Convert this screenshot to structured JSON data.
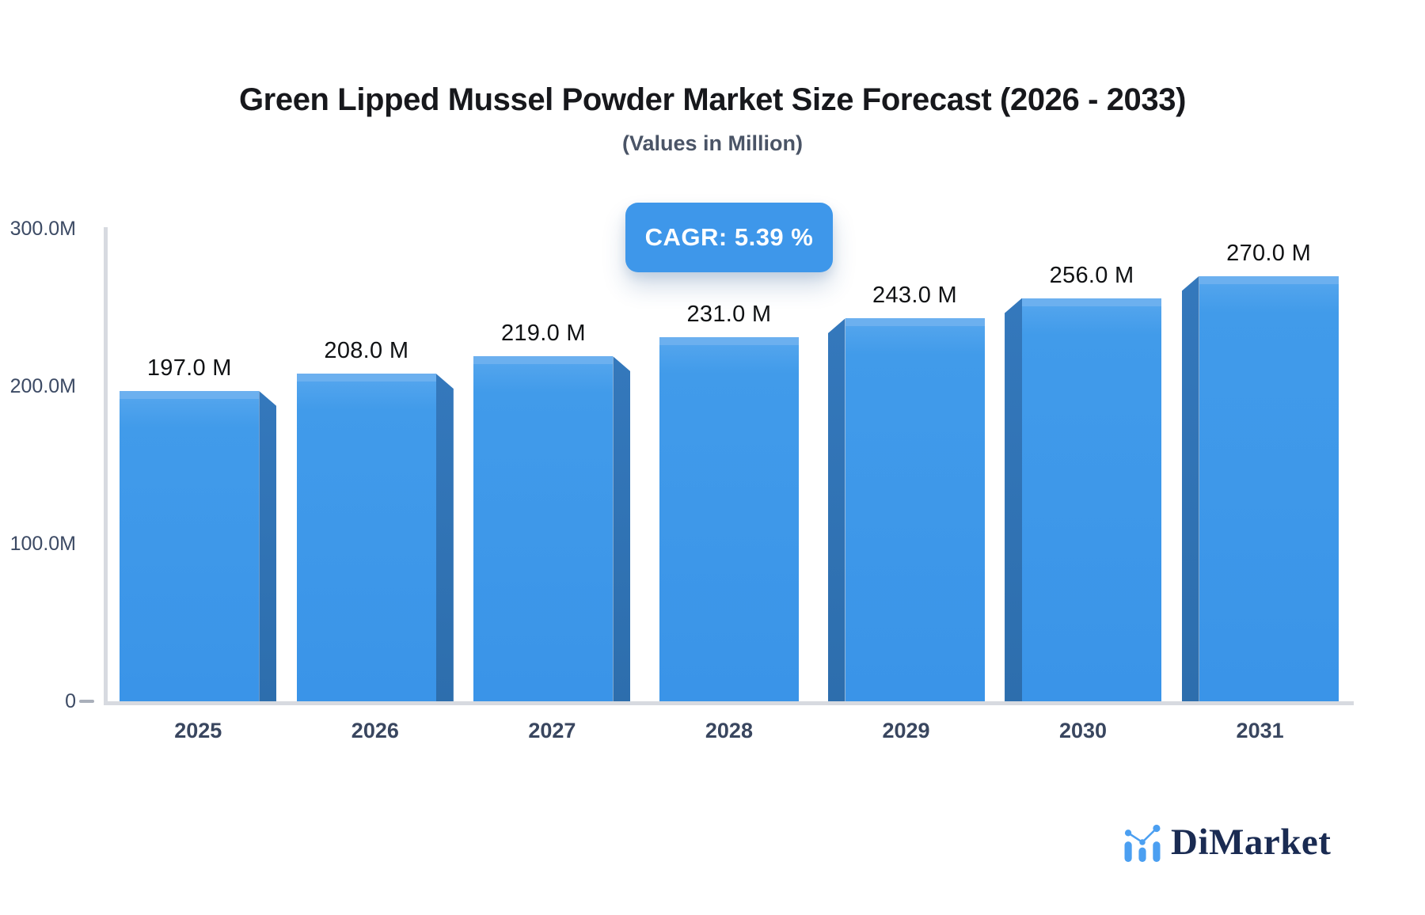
{
  "header": {
    "title": "Green Lipped Mussel Powder Market Size Forecast (2026 - 2033)",
    "subtitle": "(Values in Million)",
    "cagr_badge": "CAGR: 5.39 %"
  },
  "chart_data": {
    "type": "bar",
    "title": "Green Lipped Mussel Powder Market Size Forecast (2026 - 2033)",
    "subtitle": "(Values in Million)",
    "annotation": "CAGR: 5.39 %",
    "categories": [
      "2025",
      "2026",
      "2027",
      "2028",
      "2029",
      "2030",
      "2031"
    ],
    "values": [
      197,
      208,
      219,
      231,
      243,
      256,
      270
    ],
    "bar_labels": [
      "197.0 M",
      "208.0 M",
      "219.0 M",
      "231.0 M",
      "243.0 M",
      "256.0 M",
      "270.0 M"
    ],
    "y_ticks": [
      "300.0M",
      "200.0M",
      "100.0M",
      "0"
    ],
    "y_tick_values": [
      300,
      200,
      100,
      0
    ],
    "ylim": [
      0,
      300
    ],
    "grid": "off",
    "legend": "none",
    "colors": {
      "bar_face": "#419BEA",
      "bar_face_light": "#6CB0EF",
      "bar_side": "#2F73B5",
      "badge_bg": "#3E97EA",
      "axis_line": "#D7DAE0",
      "title_text": "#17181C",
      "subtitle_text": "#4A5466",
      "tick_text": "#3C4A64",
      "logo_navy": "#1A2B52",
      "logo_blue": "#4B9FF1"
    }
  },
  "footer": {
    "brand": "DiMarket"
  }
}
